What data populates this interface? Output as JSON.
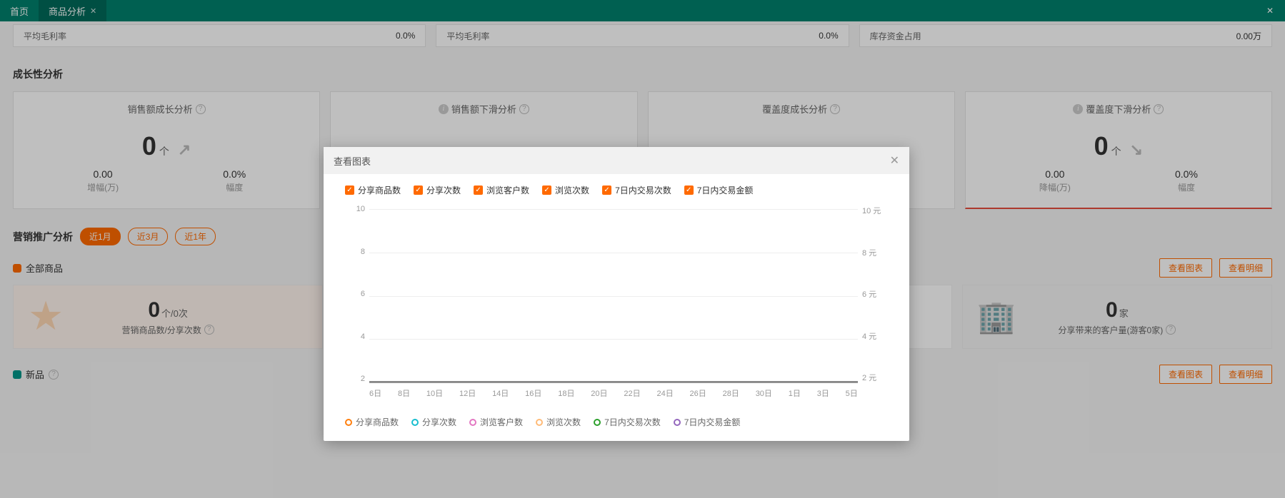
{
  "tabs": {
    "home": "首页",
    "product": "商品分析"
  },
  "stats": [
    {
      "label": "平均毛利率",
      "value": "0.0%"
    },
    {
      "label": "平均毛利率",
      "value": "0.0%"
    },
    {
      "label": "库存资金占用",
      "value": "0.00万"
    }
  ],
  "growth": {
    "section": "成长性分析",
    "cards": [
      {
        "title": "销售额成长分析",
        "big": "0",
        "unit": "个",
        "trend": "↗",
        "s1v": "0.00",
        "s1l": "增幅(万)",
        "s2v": "0.0%",
        "s2l": "幅度"
      },
      {
        "title": "销售额下滑分析"
      },
      {
        "title": "覆盖度成长分析"
      },
      {
        "title": "覆盖度下滑分析",
        "big": "0",
        "unit": "个",
        "trend": "↘",
        "s1v": "0.00",
        "s1l": "降幅(万)",
        "s2v": "0.0%",
        "s2l": "幅度"
      }
    ]
  },
  "mkt": {
    "section": "营销推广分析",
    "pills": [
      "近1月",
      "近3月",
      "近1年"
    ],
    "all": "全部商品",
    "new": "新品",
    "btn1": "查看图表",
    "btn2": "查看明细",
    "share": {
      "num": "0",
      "unit": "个/0次",
      "lbl": "营销商品数/分享次数"
    },
    "cust": {
      "num": "0",
      "unit": "家",
      "lbl": "分享带来的客户量(游客0家)"
    }
  },
  "modal": {
    "title": "查看图表",
    "checks": [
      "分享商品数",
      "分享次数",
      "浏览客户数",
      "浏览次数",
      "7日内交易次数",
      "7日内交易金额"
    ],
    "yleft": [
      "10",
      "8",
      "6",
      "4",
      "2"
    ],
    "yright": [
      "10 元",
      "8 元",
      "6 元",
      "4 元",
      "2 元"
    ],
    "x": [
      "6日",
      "8日",
      "10日",
      "12日",
      "14日",
      "16日",
      "18日",
      "20日",
      "22日",
      "24日",
      "26日",
      "28日",
      "30日",
      "1日",
      "3日",
      "5日"
    ],
    "legend": [
      {
        "c": "#ff7f0e",
        "t": "分享商品数"
      },
      {
        "c": "#17becf",
        "t": "分享次数"
      },
      {
        "c": "#e377c2",
        "t": "浏览客户数"
      },
      {
        "c": "#ffbb78",
        "t": "浏览次数"
      },
      {
        "c": "#2ca02c",
        "t": "7日内交易次数"
      },
      {
        "c": "#9467bd",
        "t": "7日内交易金额"
      }
    ]
  }
}
